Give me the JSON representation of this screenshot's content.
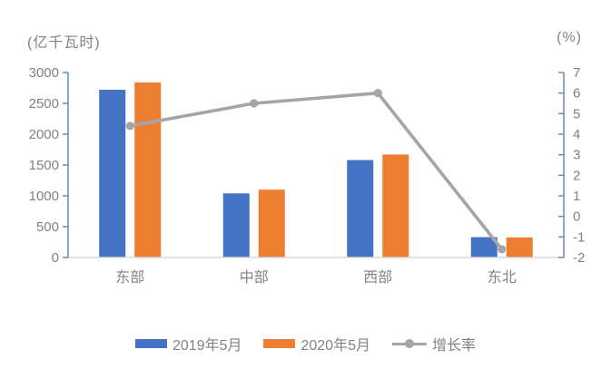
{
  "chart_data": {
    "type": "bar+line",
    "categories": [
      "东部",
      "中部",
      "西部",
      "东北"
    ],
    "series": [
      {
        "name": "2019年5月",
        "type": "bar",
        "color": "#4472C4",
        "axis": "left",
        "values": [
          2720,
          1040,
          1580,
          330
        ]
      },
      {
        "name": "2020年5月",
        "type": "bar",
        "color": "#ED7D31",
        "axis": "left",
        "values": [
          2840,
          1100,
          1670,
          325
        ]
      },
      {
        "name": "增长率",
        "type": "line",
        "color": "#A5A5A5",
        "axis": "right",
        "values": [
          4.4,
          5.5,
          6.0,
          -1.6
        ]
      }
    ],
    "left_axis": {
      "title": "(亿千瓦时)",
      "min": 0,
      "max": 3000,
      "ticks": [
        0,
        500,
        1000,
        1500,
        2000,
        2500,
        3000
      ]
    },
    "right_axis": {
      "title": "(%)",
      "min": -2,
      "max": 7,
      "ticks": [
        -2,
        -1,
        0,
        1,
        2,
        3,
        4,
        5,
        6,
        7
      ]
    },
    "legend_position": "bottom",
    "grid": false,
    "style": {
      "axis_line_color": "#5B83C0",
      "baseline_color": "#D9D9D9",
      "text_color": "#828282"
    }
  }
}
